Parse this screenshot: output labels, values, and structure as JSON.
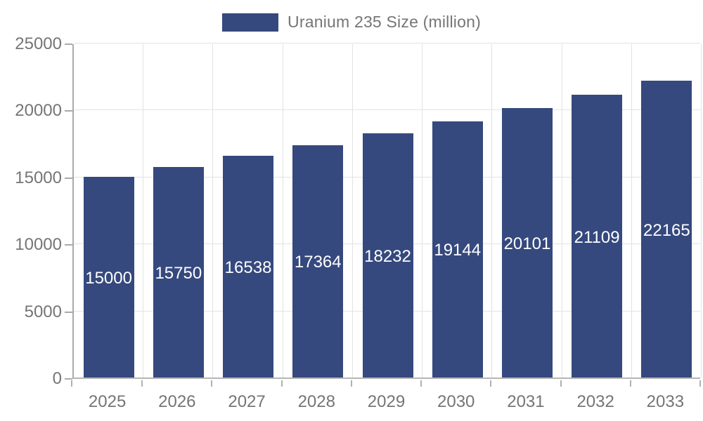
{
  "legend": {
    "label": "Uranium 235 Size (million)",
    "swatch_color": "#35497E"
  },
  "chart_data": {
    "type": "bar",
    "title": "",
    "xlabel": "",
    "ylabel": "",
    "categories": [
      "2025",
      "2026",
      "2027",
      "2028",
      "2029",
      "2030",
      "2031",
      "2032",
      "2033"
    ],
    "series": [
      {
        "name": "Uranium 235 Size (million)",
        "values": [
          15000,
          15750,
          16538,
          17364,
          18232,
          19144,
          20101,
          21109,
          22165
        ]
      }
    ],
    "value_labels": [
      15000,
      15750,
      16538,
      17364,
      18232,
      19144,
      20101,
      21109,
      22165
    ],
    "ylim": [
      0,
      25000
    ],
    "yticks": [
      0,
      5000,
      10000,
      15000,
      20000,
      25000
    ],
    "grid": true,
    "legend_position": "top-center",
    "bar_color": "#35497E",
    "value_label_color": "#ffffff",
    "axis_label_color": "#757575"
  }
}
